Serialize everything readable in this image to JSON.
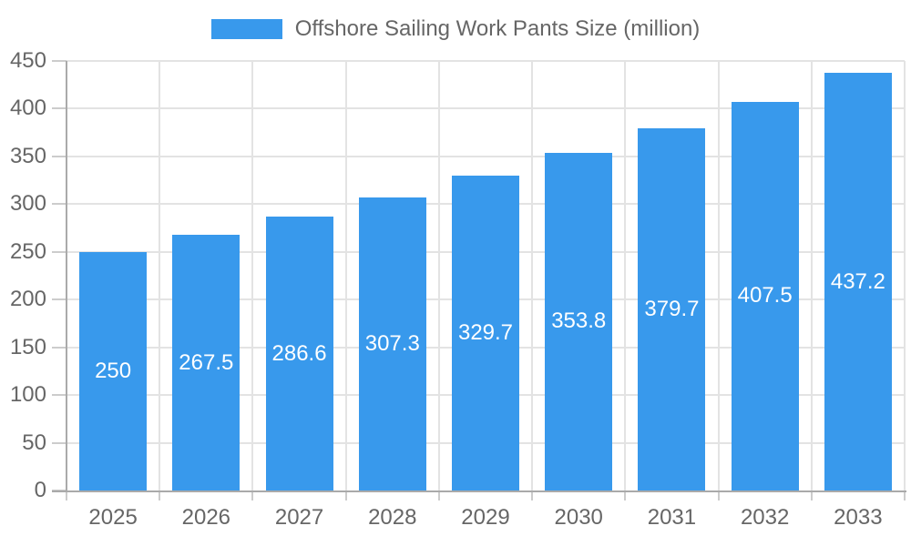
{
  "chart_data": {
    "type": "bar",
    "title": "Offshore Sailing Work Pants Size (million)",
    "legend_position": "top",
    "categories": [
      "2025",
      "2026",
      "2027",
      "2028",
      "2029",
      "2030",
      "2031",
      "2032",
      "2033"
    ],
    "values": [
      250,
      267.5,
      286.6,
      307.3,
      329.7,
      353.8,
      379.7,
      407.5,
      437.2
    ],
    "value_labels": [
      "250",
      "267.5",
      "286.6",
      "307.3",
      "329.7",
      "353.8",
      "379.7",
      "407.5",
      "437.2"
    ],
    "xlabel": "",
    "ylabel": "",
    "ylim": [
      0,
      450
    ],
    "ytick_step": 50,
    "ytick_labels": [
      "0",
      "50",
      "100",
      "150",
      "200",
      "250",
      "300",
      "350",
      "400",
      "450"
    ],
    "grid": true,
    "colors": {
      "bar": "#3899EC",
      "bar_value_label": "#FFFFFF",
      "axis_text": "#666666",
      "gridline": "#E3E3E3",
      "axis_line": "#AAAAAA",
      "tick": "#CCCCCC",
      "background": "#FFFFFF"
    }
  }
}
